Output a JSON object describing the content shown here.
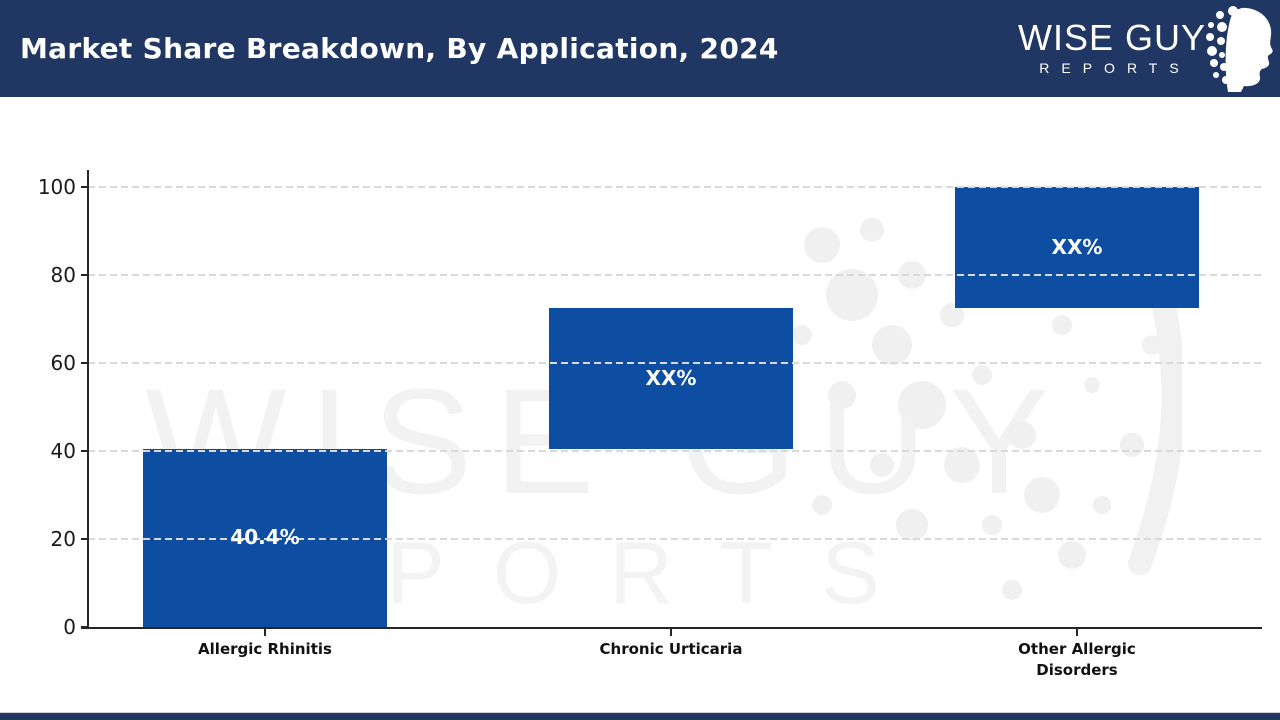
{
  "header": {
    "title": "Market Share Breakdown, By Application, 2024"
  },
  "logo": {
    "name_top": "WISE GUY",
    "name_bottom": "REPORTS"
  },
  "watermark": {
    "line1": "WISE GUY",
    "line2": "REPORTS"
  },
  "chart_data": {
    "type": "bar",
    "subtype": "waterfall-segments",
    "title": "Market Share Breakdown, By Application, 2024",
    "categories": [
      "Allergic Rhinitis",
      "Chronic Urticaria",
      "Other Allergic Disorders"
    ],
    "segments": [
      {
        "category": "Allergic Rhinitis",
        "start": 0,
        "end": 40.4,
        "label": "40.4%"
      },
      {
        "category": "Chronic Urticaria",
        "start": 40.4,
        "end": 72.4,
        "label": "XX%"
      },
      {
        "category": "Other Allergic Disorders",
        "start": 72.4,
        "end": 100,
        "label": "XX%"
      }
    ],
    "ylim": [
      0,
      100
    ],
    "yticks": [
      0,
      20,
      40,
      60,
      80,
      100
    ],
    "grid": "horizontal-dashed",
    "legend": "none",
    "bar_color": "#0d4da2",
    "bar_label_color": "#ffffff"
  },
  "colors": {
    "header_bg": "#213763",
    "bar": "#0d4da2",
    "axis": "#262626",
    "gridline": "#d9d9d9",
    "footer_bg": "#213763"
  }
}
